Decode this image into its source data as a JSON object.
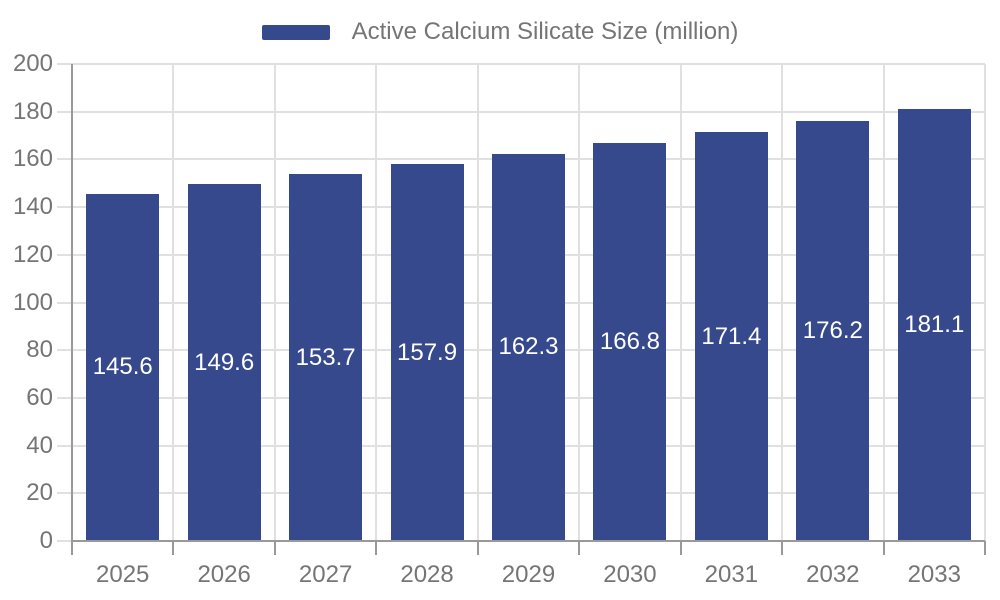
{
  "legend": {
    "label": "Active Calcium Silicate Size (million)"
  },
  "chart_data": {
    "type": "bar",
    "title": "",
    "xlabel": "",
    "ylabel": "",
    "categories": [
      "2025",
      "2026",
      "2027",
      "2028",
      "2029",
      "2030",
      "2031",
      "2032",
      "2033"
    ],
    "series": [
      {
        "name": "Active Calcium Silicate Size (million)",
        "values": [
          145.6,
          149.6,
          153.7,
          157.9,
          162.3,
          166.8,
          171.4,
          176.2,
          181.1
        ]
      }
    ],
    "ylim": [
      0,
      200
    ],
    "yticks": [
      0,
      20,
      40,
      60,
      80,
      100,
      120,
      140,
      160,
      180,
      200
    ],
    "grid": true,
    "legend_position": "top",
    "value_labels": "inside-center",
    "colors": {
      "bar": "#36498C",
      "grid": "#E0E0E0",
      "axis": "#999999",
      "tick_label": "#757575",
      "value_label": "#FFFFFF",
      "background": "#FFFFFF"
    }
  }
}
